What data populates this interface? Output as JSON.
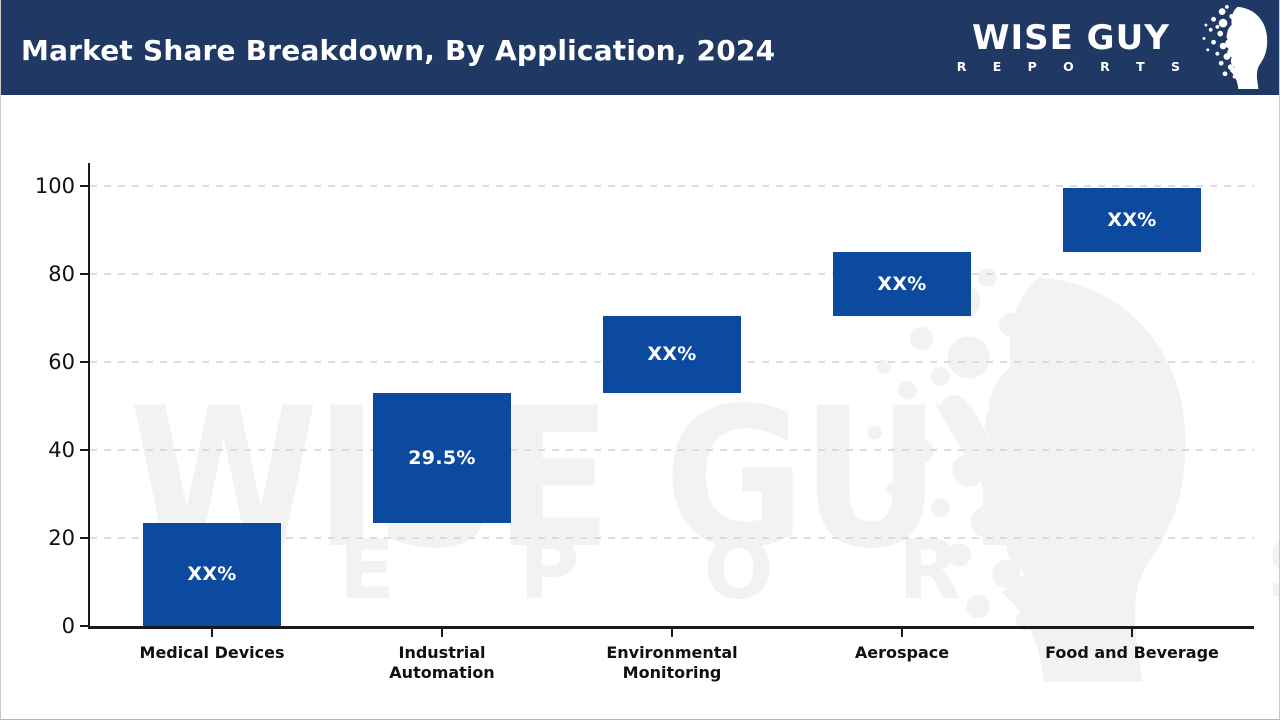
{
  "header": {
    "title": "Market Share Breakdown, By Application, 2024",
    "logo": {
      "line1": "WISE GUY",
      "line2": "R E P O R T S"
    }
  },
  "watermark": {
    "line1": "WISE GUY",
    "line2": "REPORTS"
  },
  "colors": {
    "header_bg": "#1f3864",
    "bar": "#0c4aa0",
    "grid": "#dcdcdc",
    "axis": "#1a1a1a",
    "bar_label_text": "#ffffff",
    "tick_text": "#111111",
    "watermark": "#f2f2f3"
  },
  "chart_data": {
    "type": "bar",
    "subtype": "waterfall",
    "title": "Market Share Breakdown, By Application, 2024",
    "xlabel": "",
    "ylabel": "",
    "ylim": [
      0,
      105
    ],
    "yticks": [
      0,
      20,
      40,
      60,
      80,
      100
    ],
    "grid": "horizontal-dashed",
    "legend": "none",
    "categories": [
      "Medical Devices",
      "Industrial Automation",
      "Environmental Monitoring",
      "Aerospace",
      "Food and Beverage"
    ],
    "category_label_lines": [
      [
        "Medical Devices"
      ],
      [
        "Industrial",
        "Automation"
      ],
      [
        "Environmental",
        "Monitoring"
      ],
      [
        "Aerospace"
      ],
      [
        "Food and Beverage"
      ]
    ],
    "segments": [
      {
        "category": "Medical Devices",
        "start": 0,
        "end": 23.5,
        "value": 23.5,
        "label": "XX%"
      },
      {
        "category": "Industrial Automation",
        "start": 23.5,
        "end": 53,
        "value": 29.5,
        "label": "29.5%"
      },
      {
        "category": "Environmental Monitoring",
        "start": 53,
        "end": 70.5,
        "value": 17.5,
        "label": "XX%"
      },
      {
        "category": "Aerospace",
        "start": 70.5,
        "end": 85,
        "value": 14.5,
        "label": "XX%"
      },
      {
        "category": "Food and Beverage",
        "start": 85,
        "end": 99.5,
        "value": 14.5,
        "label": "XX%"
      }
    ]
  }
}
